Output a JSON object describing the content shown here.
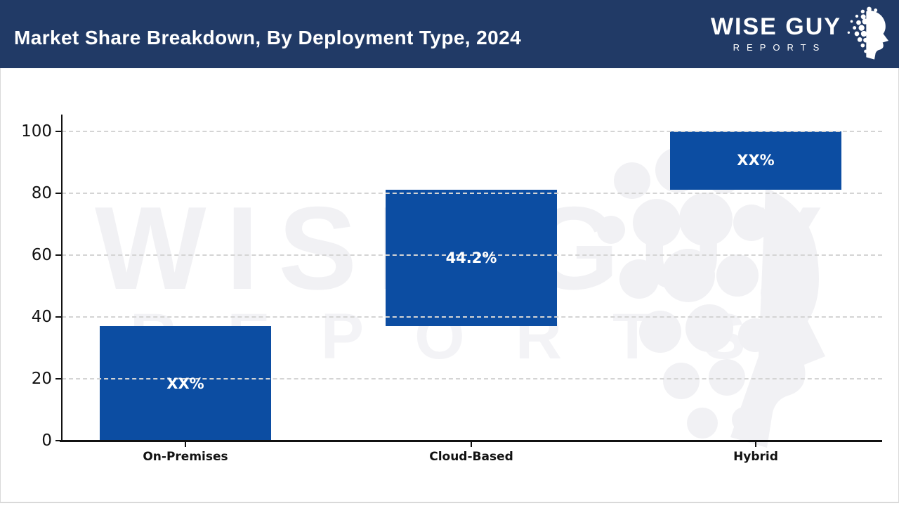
{
  "header": {
    "title": "Market Share Breakdown, By Deployment Type, 2024",
    "logo": {
      "line1": "WISE GUY",
      "line2": "REPORTS"
    }
  },
  "watermark": {
    "line1": "WISE GUY",
    "line2": "REPORTS"
  },
  "chart_data": {
    "type": "bar",
    "variant": "floating-waterfall-segments",
    "title": "Market Share Breakdown, By Deployment Type, 2024",
    "categories": [
      "On-Premises",
      "Cloud-Based",
      "Hybrid"
    ],
    "segments": [
      {
        "category": "On-Premises",
        "start": 0,
        "end": 37,
        "label": "XX%"
      },
      {
        "category": "Cloud-Based",
        "start": 37,
        "end": 81.2,
        "label": "44.2%"
      },
      {
        "category": "Hybrid",
        "start": 81.2,
        "end": 100,
        "label": "XX%"
      }
    ],
    "yticks": [
      0,
      20,
      40,
      60,
      80,
      100
    ],
    "ylim": [
      0,
      100
    ],
    "xlabel": "",
    "ylabel": "",
    "grid": "horizontal-dashed-over-bars",
    "legend": "none",
    "bar_color": "#0c4da2",
    "bar_label_color": "#ffffff",
    "axis_color": "#111111",
    "gridline_color": "#d4d4d4",
    "header_bg": "#213a66",
    "watermark_color": "#f1f1f4"
  }
}
